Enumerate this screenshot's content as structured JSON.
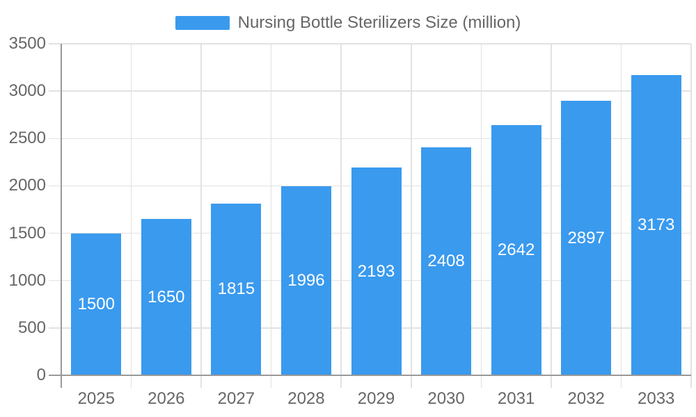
{
  "chart_data": {
    "type": "bar",
    "title": "Nursing Bottle Sterilizers Size (million)",
    "legend": {
      "label": "Nursing Bottle Sterilizers Size (million)",
      "position": "top"
    },
    "categories": [
      "2025",
      "2026",
      "2027",
      "2028",
      "2029",
      "2030",
      "2031",
      "2032",
      "2033"
    ],
    "values": [
      1500,
      1650,
      1815,
      1996,
      2193,
      2408,
      2642,
      2897,
      3173
    ],
    "xlabel": "",
    "ylabel": "",
    "ylim": [
      0,
      3500
    ],
    "ytick_step": 500,
    "yticks": [
      0,
      500,
      1000,
      1500,
      2000,
      2500,
      3000,
      3500
    ],
    "grid": true,
    "value_labels_shown": true,
    "colors": {
      "bar": "#3A9AEE",
      "value_label": "#ffffff",
      "axis_label": "#666666",
      "legend_label": "#666666",
      "gridline": "#e2e2e2",
      "axis_line": "#999999",
      "background": "#ffffff"
    }
  }
}
